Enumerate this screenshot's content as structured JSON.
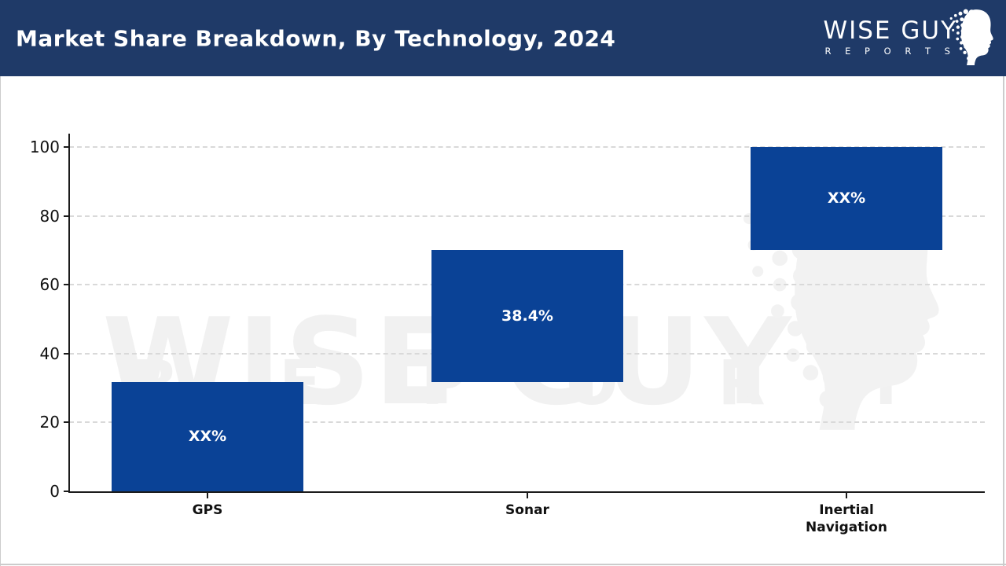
{
  "header": {
    "bg_color": "#1f3a68",
    "title": "Market Share Breakdown, By Technology, 2024",
    "logo": {
      "line1": "WISE GUY",
      "line2": "R E P O R T S"
    }
  },
  "watermark": {
    "line1": "WISE GUY",
    "line2": "R E P O R T S"
  },
  "chart_data": {
    "type": "bar",
    "variant": "floating-segment-breakdown",
    "title": "Market Share Breakdown, By Technology, 2024",
    "categories": [
      "GPS",
      "Sonar",
      "Inertial Navigation"
    ],
    "segments": [
      {
        "category": "GPS",
        "label": "XX%",
        "start": 0,
        "end": 31.8
      },
      {
        "category": "Sonar",
        "label": "38.4%",
        "start": 31.8,
        "end": 70.2
      },
      {
        "category": "Inertial Navigation",
        "label": "XX%",
        "start": 70.2,
        "end": 100
      }
    ],
    "y_ticks": [
      "0",
      "20",
      "40",
      "60",
      "80",
      "100"
    ],
    "ylim": [
      0,
      104
    ],
    "bar_color": "#0a4296",
    "grid": "horizontal-dashed",
    "legend": "none",
    "xlabel": "",
    "ylabel": ""
  }
}
